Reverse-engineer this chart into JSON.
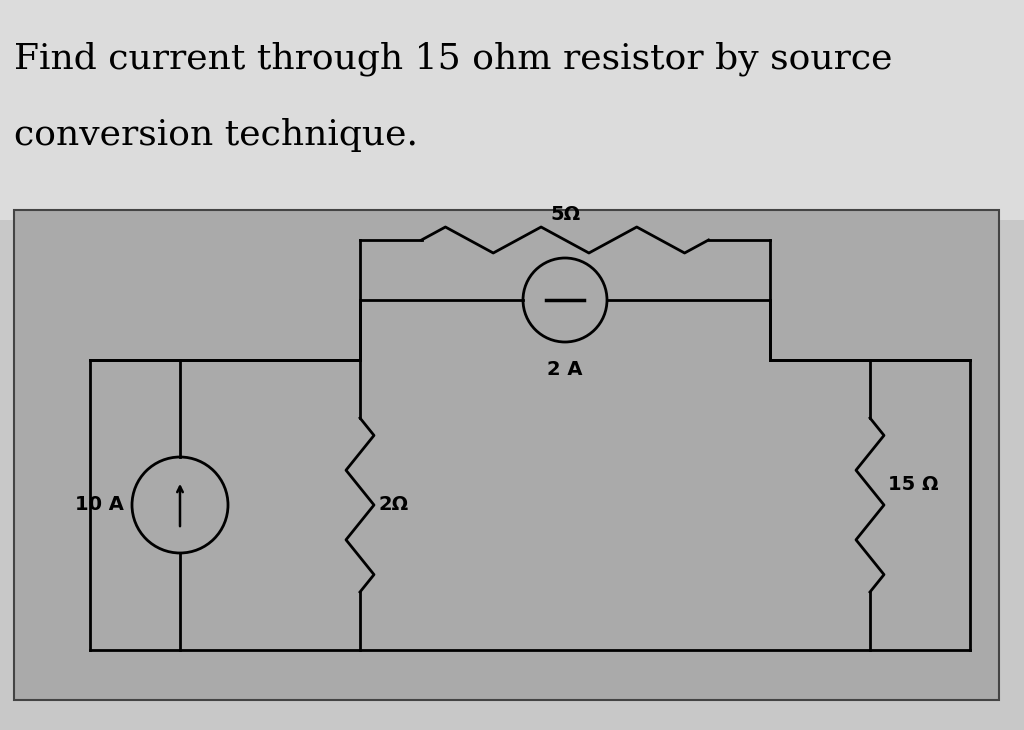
{
  "title_line1": "Find current through 15 ohm resistor by source",
  "title_line2": "conversion technique.",
  "title_fontsize": 26,
  "title_color": "#000000",
  "wire_color": "#000000",
  "wire_lw": 2.0,
  "component_lw": 2.0,
  "label_fontsize": 14,
  "page_bg": "#c8c8c8",
  "title_bg": "#e0e0e0",
  "circuit_bg": "#aaaaaa",
  "label_10A": "10 A",
  "label_2R": "2Ω",
  "label_5R": "5Ω",
  "label_2A": "2 A",
  "label_15R": "15 Ω"
}
